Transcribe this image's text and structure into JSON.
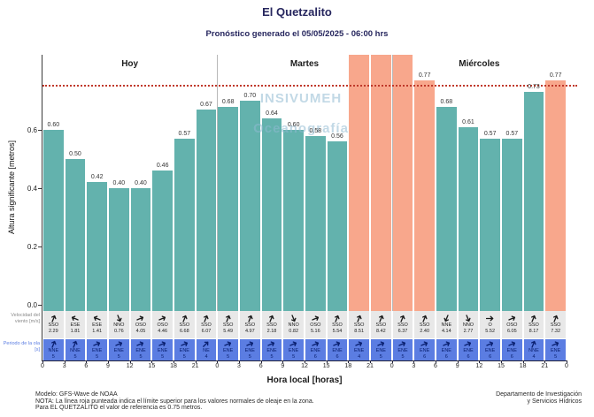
{
  "title": "El Quetzalito",
  "subtitle": "Pronóstico generado el 05/05/2025 - 06:00 hrs",
  "watermark": {
    "line1": "INSIVUMEH",
    "line2": "Oceanografía"
  },
  "colors": {
    "bar_normal": "#63b2ad",
    "bar_exceed": "#f8a78c",
    "reference_line": "#c0392b",
    "wind_row_bg": "#e8e8e8",
    "wave_row_bg": "#5b7de2",
    "wave_row_text": "#0a2070",
    "title_text": "#26265e",
    "watermark_text": "#90bad1"
  },
  "row_axis_labels": {
    "wind": "Velocidad del viento [m/s]",
    "wave": "Periodo de la ola [s]"
  },
  "footer": {
    "model": "Modelo: GFS-Wave de NOAA",
    "nota1": "NOTA: La línea roja punteada indica el límite superior para los valores normales de oleaje en la zona.",
    "nota2": "Para EL QUETZALITO el valor de referencia es 0.75 metros.",
    "dept1": "Departamento de Investigación",
    "dept2": "y Servicios Hídricos"
  },
  "chart_data": {
    "type": "bar",
    "title": "El Quetzalito",
    "xlabel": "Hora local [horas]",
    "ylabel": "Altura significante [metros]",
    "ylim": [
      0,
      0.86
    ],
    "yticks": [
      "0.0",
      "0.2",
      "0.4",
      "0.6"
    ],
    "reference_line": {
      "value": 0.75,
      "style": "dotted"
    },
    "days": [
      "Hoy",
      "Martes",
      "Miércoles"
    ],
    "x_tick_labels": [
      "0",
      "3",
      "6",
      "9",
      "12",
      "15",
      "18",
      "21",
      "0",
      "3",
      "6",
      "9",
      "12",
      "15",
      "18",
      "21",
      "0",
      "3",
      "6",
      "9",
      "12",
      "15",
      "18",
      "21",
      "0"
    ],
    "columns": [
      {
        "day": "Hoy",
        "hour": "0",
        "value": 0.6,
        "label": "0.60",
        "exceeds": false,
        "clipped": false,
        "wind": {
          "dir": "SSO",
          "speed": "2.29"
        },
        "wave": {
          "dir": "NNE",
          "period": "5"
        }
      },
      {
        "day": "Hoy",
        "hour": "3",
        "value": 0.5,
        "label": "0.50",
        "exceeds": false,
        "clipped": false,
        "wind": {
          "dir": "ESE",
          "speed": "1.81"
        },
        "wave": {
          "dir": "NNE",
          "period": "5"
        }
      },
      {
        "day": "Hoy",
        "hour": "6",
        "value": 0.42,
        "label": "0.42",
        "exceeds": false,
        "clipped": false,
        "wind": {
          "dir": "ESE",
          "speed": "1.41"
        },
        "wave": {
          "dir": "ENE",
          "period": "5"
        }
      },
      {
        "day": "Hoy",
        "hour": "9",
        "value": 0.4,
        "label": "0.40",
        "exceeds": false,
        "clipped": false,
        "wind": {
          "dir": "NNO",
          "speed": "0.76"
        },
        "wave": {
          "dir": "ENE",
          "period": "5"
        }
      },
      {
        "day": "Hoy",
        "hour": "12",
        "value": 0.4,
        "label": "0.40",
        "exceeds": false,
        "clipped": false,
        "wind": {
          "dir": "OSO",
          "speed": "4.05"
        },
        "wave": {
          "dir": "ENE",
          "period": "5"
        }
      },
      {
        "day": "Hoy",
        "hour": "15",
        "value": 0.46,
        "label": "0.46",
        "exceeds": false,
        "clipped": false,
        "wind": {
          "dir": "OSO",
          "speed": "4.46"
        },
        "wave": {
          "dir": "ENE",
          "period": "5"
        }
      },
      {
        "day": "Hoy",
        "hour": "18",
        "value": 0.57,
        "label": "0.57",
        "exceeds": false,
        "clipped": false,
        "wind": {
          "dir": "SSO",
          "speed": "6.68"
        },
        "wave": {
          "dir": "ENE",
          "period": "5"
        }
      },
      {
        "day": "Hoy",
        "hour": "21",
        "value": 0.67,
        "label": "0.67",
        "exceeds": false,
        "clipped": false,
        "wind": {
          "dir": "SSO",
          "speed": "6.07"
        },
        "wave": {
          "dir": "NE",
          "period": "4"
        }
      },
      {
        "day": "Martes",
        "hour": "0",
        "value": 0.68,
        "label": "0.68",
        "exceeds": false,
        "clipped": false,
        "wind": {
          "dir": "SSO",
          "speed": "5.49"
        },
        "wave": {
          "dir": "ENE",
          "period": "5"
        }
      },
      {
        "day": "Martes",
        "hour": "3",
        "value": 0.7,
        "label": "0.70",
        "exceeds": false,
        "clipped": false,
        "wind": {
          "dir": "SSO",
          "speed": "4.97"
        },
        "wave": {
          "dir": "ENE",
          "period": "5"
        }
      },
      {
        "day": "Martes",
        "hour": "6",
        "value": 0.64,
        "label": "0.64",
        "exceeds": false,
        "clipped": false,
        "wind": {
          "dir": "SSO",
          "speed": "2.18"
        },
        "wave": {
          "dir": "ENE",
          "period": "5"
        }
      },
      {
        "day": "Martes",
        "hour": "9",
        "value": 0.6,
        "label": "0.60",
        "exceeds": false,
        "clipped": false,
        "wind": {
          "dir": "NNO",
          "speed": "0.82"
        },
        "wave": {
          "dir": "ENE",
          "period": "5"
        }
      },
      {
        "day": "Martes",
        "hour": "12",
        "value": 0.58,
        "label": "0.58",
        "exceeds": false,
        "clipped": false,
        "wind": {
          "dir": "OSO",
          "speed": "5.16"
        },
        "wave": {
          "dir": "ENE",
          "period": "6"
        }
      },
      {
        "day": "Martes",
        "hour": "15",
        "value": 0.56,
        "label": "0.56",
        "exceeds": false,
        "clipped": false,
        "wind": {
          "dir": "SSO",
          "speed": "5.54"
        },
        "wave": {
          "dir": "ENE",
          "period": "6"
        }
      },
      {
        "day": "Martes",
        "hour": "18",
        "value": null,
        "label": "",
        "exceeds": true,
        "clipped": true,
        "wind": {
          "dir": "SSO",
          "speed": "8.51"
        },
        "wave": {
          "dir": "ENE",
          "period": "4"
        }
      },
      {
        "day": "Martes",
        "hour": "21",
        "value": null,
        "label": "",
        "exceeds": true,
        "clipped": true,
        "wind": {
          "dir": "SSO",
          "speed": "8.42"
        },
        "wave": {
          "dir": "ENE",
          "period": "5"
        }
      },
      {
        "day": "Miércoles",
        "hour": "0",
        "value": null,
        "label": "",
        "exceeds": true,
        "clipped": true,
        "wind": {
          "dir": "SSO",
          "speed": "6.37"
        },
        "wave": {
          "dir": "ENE",
          "period": "5"
        }
      },
      {
        "day": "Miércoles",
        "hour": "3",
        "value": 0.77,
        "label": "0.77",
        "exceeds": true,
        "clipped": false,
        "wind": {
          "dir": "SSO",
          "speed": "2.40"
        },
        "wave": {
          "dir": "ENE",
          "period": "6"
        }
      },
      {
        "day": "Miércoles",
        "hour": "6",
        "value": 0.68,
        "label": "0.68",
        "exceeds": false,
        "clipped": false,
        "wind": {
          "dir": "NNE",
          "speed": "4.14"
        },
        "wave": {
          "dir": "ENE",
          "period": "6"
        }
      },
      {
        "day": "Miércoles",
        "hour": "9",
        "value": 0.61,
        "label": "0.61",
        "exceeds": false,
        "clipped": false,
        "wind": {
          "dir": "NNO",
          "speed": "2.77"
        },
        "wave": {
          "dir": "ENE",
          "period": "6"
        }
      },
      {
        "day": "Miércoles",
        "hour": "12",
        "value": 0.57,
        "label": "0.57",
        "exceeds": false,
        "clipped": false,
        "wind": {
          "dir": "O",
          "speed": "5.52"
        },
        "wave": {
          "dir": "ENE",
          "period": "6"
        }
      },
      {
        "day": "Miércoles",
        "hour": "15",
        "value": 0.57,
        "label": "0.57",
        "exceeds": false,
        "clipped": false,
        "wind": {
          "dir": "OSO",
          "speed": "6.05"
        },
        "wave": {
          "dir": "ENE",
          "period": "6"
        }
      },
      {
        "day": "Miércoles",
        "hour": "18",
        "value": 0.73,
        "label": "0.73",
        "exceeds": false,
        "clipped": false,
        "wind": {
          "dir": "SSO",
          "speed": "8.17"
        },
        "wave": {
          "dir": "NNE",
          "period": "4"
        }
      },
      {
        "day": "Miércoles",
        "hour": "21",
        "value": 0.77,
        "label": "0.77",
        "exceeds": true,
        "clipped": false,
        "wind": {
          "dir": "SSO",
          "speed": "7.32"
        },
        "wave": {
          "dir": "ENE",
          "period": "5"
        }
      }
    ]
  }
}
